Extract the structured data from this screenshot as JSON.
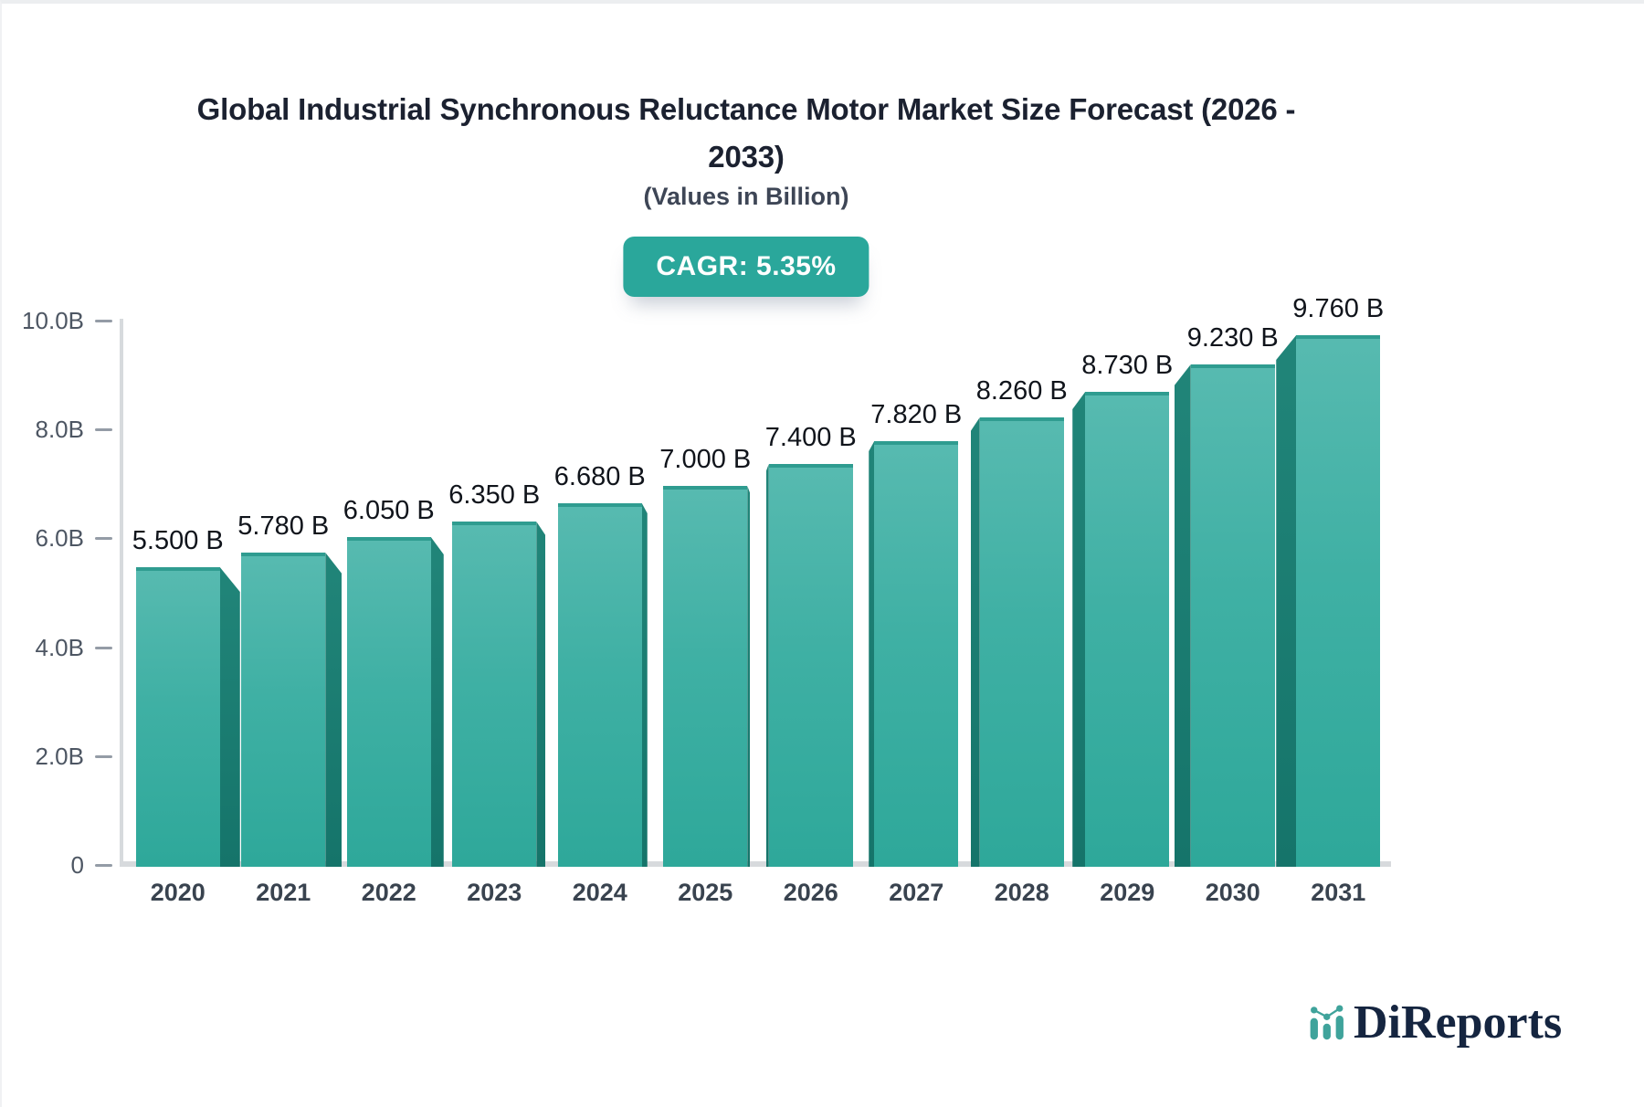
{
  "page": {
    "title_lines": [
      "Global Industrial Synchronous Reluctance Motor Market Size Forecast (2026 -",
      "2033)"
    ],
    "subtitle": "(Values in Billion)",
    "badge": "CAGR: 5.35%"
  },
  "brand": {
    "name": "DiReports",
    "icon": "mini-bar-chart-logo-icon"
  },
  "colors": {
    "accent_teal": "#2aa79b",
    "badge_bg": "#2aa79b",
    "bar_face_top": "#57bab0",
    "bar_face_bottom": "#2ea89a",
    "bar_side": "#1b7d73",
    "bar_top_edge": "#2f9c90",
    "axis_line": "#d7dadd",
    "logo_navy": "#152540",
    "logo_teal": "#3fa39b"
  },
  "chart_data": {
    "type": "bar",
    "title": "Global Industrial Synchronous Reluctance Motor Market Size Forecast (2026 - 2033)",
    "subtitle": "(Values in Billion)",
    "annotation": "CAGR: 5.35%",
    "categories": [
      "2020",
      "2021",
      "2022",
      "2023",
      "2024",
      "2025",
      "2026",
      "2027",
      "2028",
      "2029",
      "2030",
      "2031"
    ],
    "values": [
      5.5,
      5.78,
      6.05,
      6.35,
      6.68,
      7.0,
      7.4,
      7.82,
      8.26,
      8.73,
      9.23,
      9.76
    ],
    "value_labels": [
      "5.500 B",
      "5.780 B",
      "6.050 B",
      "6.350 B",
      "6.680 B",
      "7.000 B",
      "7.400 B",
      "7.820 B",
      "8.260 B",
      "8.730 B",
      "9.230 B",
      "9.760 B"
    ],
    "xlabel": "",
    "ylabel": "",
    "ylim": [
      0,
      10
    ],
    "y_ticks": {
      "values": [
        0,
        2,
        4,
        6,
        8,
        10
      ],
      "labels": [
        "0",
        "2.0B",
        "4.0B",
        "6.0B",
        "8.0B",
        "10.0B"
      ]
    },
    "grid": false,
    "legend": false,
    "bar_style": "3d-extruded-teal"
  }
}
